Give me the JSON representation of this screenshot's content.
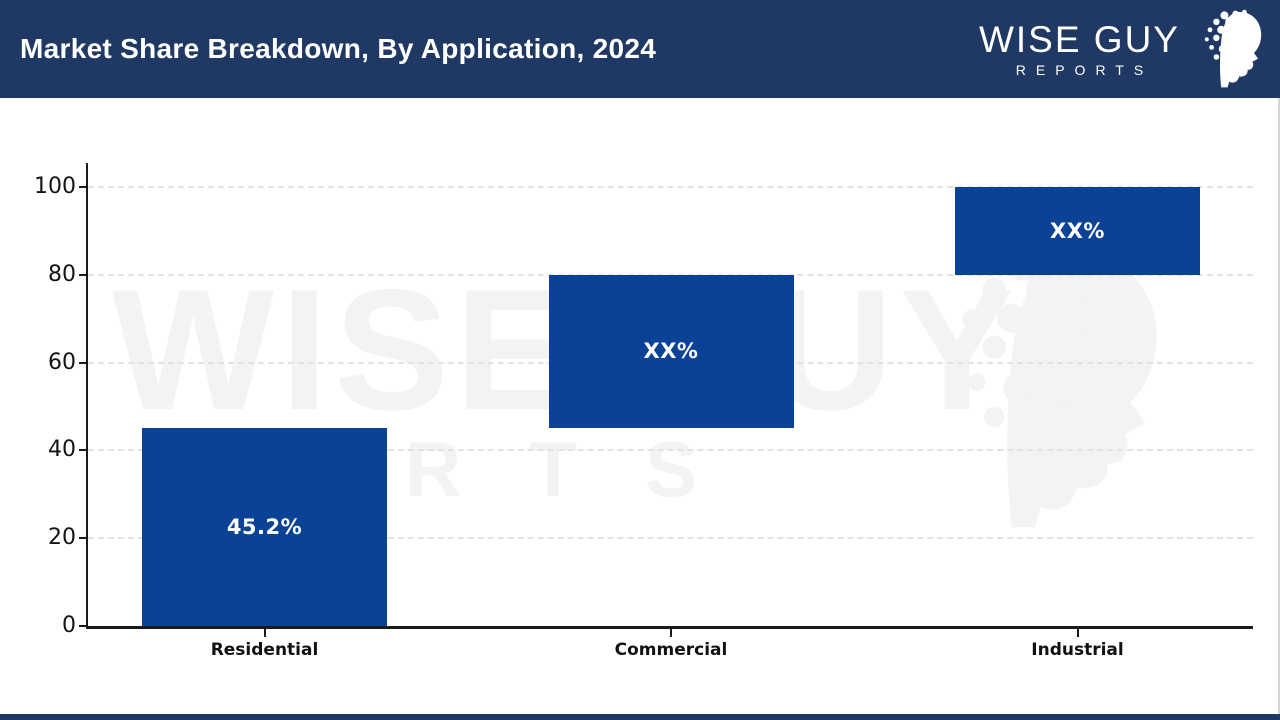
{
  "header": {
    "title": "Market Share Breakdown, By Application, 2024",
    "logo": {
      "wordmark": "WISE GUY",
      "subtext": "REPORTS"
    }
  },
  "watermark": {
    "wordmark": "WISE GUY",
    "subtext": "RORTS"
  },
  "chart_data": {
    "type": "bar",
    "subtype": "waterfall",
    "title": "Market Share Breakdown, By Application, 2024",
    "categories": [
      "Residential",
      "Commercial",
      "Industrial"
    ],
    "segments": [
      {
        "category": "Residential",
        "start": 0,
        "end": 45.2,
        "value": 45.2,
        "label": "45.2%"
      },
      {
        "category": "Commercial",
        "start": 45.2,
        "end": 80,
        "value": 34.8,
        "label": "XX%"
      },
      {
        "category": "Industrial",
        "start": 80,
        "end": 100,
        "value": 20,
        "label": "XX%"
      }
    ],
    "ylim": [
      0,
      100
    ],
    "yticks": [
      0,
      20,
      40,
      60,
      80,
      100
    ],
    "xlabel": "",
    "ylabel": "",
    "grid": "horizontal-dashed",
    "legend": "none",
    "bar_color": "#0a4296",
    "bar_label_color": "#ffffff"
  },
  "colors": {
    "header_bg": "#1f3864",
    "axis": "#1a1a1a",
    "gridline": "#e2e2e2",
    "tick_text": "#141414",
    "watermark": "#f2f3f5"
  }
}
